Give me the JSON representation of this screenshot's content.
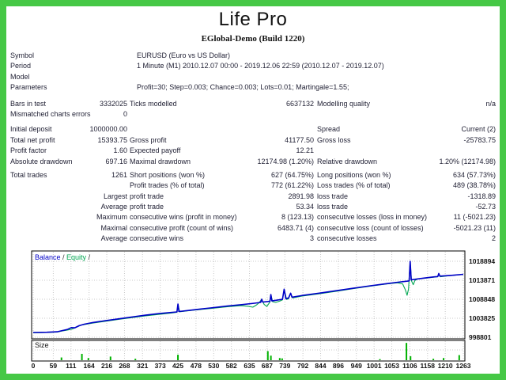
{
  "title": "Life Pro",
  "subtitle": "EGlobal-Demo (Build 1220)",
  "colors": {
    "frame": "#46c846",
    "balance": "#0000c8",
    "equity": "#00a651",
    "size_bar": "#00b200",
    "grid": "#c9c9c9",
    "axis_text": "#111111",
    "box_border": "#000000",
    "legend_sep": "#333333"
  },
  "report_rows": [
    {
      "l1": "Symbol",
      "span": "EURUSD (Euro vs US Dollar)"
    },
    {
      "l1": "Period",
      "span": "1 Minute (M1) 2010.12.07 00:00 - 2019.12.06 22:59 (2010.12.07 - 2019.12.07)"
    },
    {
      "l1": "Model",
      "span": ""
    },
    {
      "l1": "Parameters",
      "span": "Profit=30; Step=0.003; Chance=0.003; Lots=0.01; Martingale=1.55;"
    },
    {
      "gap": 7,
      "l1": "Bars in test",
      "v1": "3332025",
      "l2": "Ticks modelled",
      "v2": "6637132",
      "l3": "Modelling quality",
      "v3": "n/a"
    },
    {
      "l1": "Mismatched charts errors",
      "v1": "0"
    },
    {
      "gap": 6,
      "l1": "Initial deposit",
      "v1": "1000000.00",
      "l3": "Spread",
      "v3": "Current (2)"
    },
    {
      "l1": "Total net profit",
      "v1": "15393.75",
      "l2": "Gross profit",
      "v2": "41177.50",
      "l3": "Gross loss",
      "v3": "-25783.75"
    },
    {
      "l1": "Profit factor",
      "v1": "1.60",
      "l2": "Expected payoff",
      "v2": "12.21"
    },
    {
      "l1": "Absolute drawdown",
      "v1": "697.16",
      "l2": "Maximal drawdown",
      "v2": "12174.98 (1.20%)",
      "l3": "Relative drawdown",
      "v3": "1.20% (12174.98)"
    },
    {
      "gap": 4,
      "l1": "Total trades",
      "v1": "1261",
      "l2": "Short positions (won %)",
      "v2": "627 (64.75%)",
      "l3": "Long positions (won %)",
      "v3": "634 (57.73%)"
    },
    {
      "l2": "Profit trades (% of total)",
      "v2": "772 (61.22%)",
      "l3": "Loss trades (% of total)",
      "v3": "489 (38.78%)"
    },
    {
      "v1": "Largest",
      "l2": "profit trade",
      "v2": "2891.98",
      "l3": "loss trade",
      "v3": "-1318.89"
    },
    {
      "v1": "Average",
      "l2": "profit trade",
      "v2": "53.34",
      "l3": "loss trade",
      "v3": "-52.73"
    },
    {
      "v1": "Maximum",
      "l2": "consecutive wins (profit in money)",
      "v2": "8 (123.13)",
      "l3": "consecutive losses (loss in money)",
      "v3": "11 (-5021.23)"
    },
    {
      "v1": "Maximal",
      "l2": "consecutive profit (count of wins)",
      "v2": "6483.71 (4)",
      "l3": "consecutive loss (count of losses)",
      "v3": "-5021.23 (11)"
    },
    {
      "v1": "Average",
      "l2": "consecutive wins",
      "v2": "3",
      "l3": "consecutive losses",
      "v3": "2"
    }
  ],
  "chart_data": {
    "type": "line",
    "title": "",
    "legend": [
      "Balance",
      "Equity"
    ],
    "legend_position": "top-left",
    "grid": true,
    "xlim": [
      0,
      1263
    ],
    "ylim": [
      998300,
      1021600
    ],
    "x_ticks": [
      0,
      59,
      111,
      164,
      216,
      268,
      321,
      373,
      425,
      478,
      530,
      582,
      635,
      687,
      739,
      792,
      844,
      896,
      949,
      1001,
      1053,
      1106,
      1158,
      1210,
      1263
    ],
    "y_ticks": [
      998801,
      1003825,
      1008848,
      1013871,
      1018894
    ],
    "series": [
      {
        "name": "Balance",
        "points": [
          [
            0,
            1000050
          ],
          [
            40,
            1000130
          ],
          [
            70,
            1000250
          ],
          [
            85,
            1000550
          ],
          [
            100,
            1000850
          ],
          [
            112,
            1001350
          ],
          [
            122,
            1001300
          ],
          [
            135,
            1001850
          ],
          [
            150,
            1002250
          ],
          [
            175,
            1002700
          ],
          [
            210,
            1003150
          ],
          [
            250,
            1003650
          ],
          [
            290,
            1004150
          ],
          [
            330,
            1004650
          ],
          [
            370,
            1005050
          ],
          [
            405,
            1005350
          ],
          [
            422,
            1005500
          ],
          [
            425,
            1007600
          ],
          [
            428,
            1005600
          ],
          [
            470,
            1006050
          ],
          [
            520,
            1006550
          ],
          [
            570,
            1007050
          ],
          [
            615,
            1007450
          ],
          [
            650,
            1007800
          ],
          [
            668,
            1008000
          ],
          [
            671,
            1008850
          ],
          [
            674,
            1008100
          ],
          [
            688,
            1008250
          ],
          [
            695,
            1008300
          ],
          [
            698,
            1010100
          ],
          [
            701,
            1008400
          ],
          [
            715,
            1008600
          ],
          [
            732,
            1008850
          ],
          [
            737,
            1011500
          ],
          [
            742,
            1009000
          ],
          [
            750,
            1009200
          ],
          [
            756,
            1010450
          ],
          [
            760,
            1009400
          ],
          [
            790,
            1009850
          ],
          [
            840,
            1010450
          ],
          [
            890,
            1011100
          ],
          [
            940,
            1011750
          ],
          [
            990,
            1012400
          ],
          [
            1040,
            1013000
          ],
          [
            1080,
            1013450
          ],
          [
            1100,
            1013650
          ],
          [
            1104,
            1013700
          ],
          [
            1107,
            1018900
          ],
          [
            1110,
            1014000
          ],
          [
            1140,
            1014350
          ],
          [
            1175,
            1014750
          ],
          [
            1188,
            1014850
          ],
          [
            1191,
            1015650
          ],
          [
            1194,
            1014950
          ],
          [
            1225,
            1015150
          ],
          [
            1263,
            1015450
          ]
        ]
      },
      {
        "name": "Equity",
        "points": [
          [
            0,
            1000000
          ],
          [
            40,
            1000080
          ],
          [
            70,
            1000180
          ],
          [
            85,
            1000450
          ],
          [
            100,
            1000700
          ],
          [
            112,
            1000900
          ],
          [
            118,
            1001100
          ],
          [
            128,
            1001500
          ],
          [
            140,
            1002000
          ],
          [
            175,
            1002550
          ],
          [
            210,
            1003000
          ],
          [
            250,
            1003500
          ],
          [
            290,
            1004000
          ],
          [
            330,
            1004450
          ],
          [
            370,
            1004850
          ],
          [
            405,
            1005200
          ],
          [
            422,
            1005400
          ],
          [
            425,
            1007550
          ],
          [
            430,
            1005550
          ],
          [
            470,
            1005950
          ],
          [
            520,
            1006400
          ],
          [
            570,
            1006850
          ],
          [
            610,
            1007150
          ],
          [
            630,
            1007000
          ],
          [
            645,
            1006750
          ],
          [
            655,
            1007300
          ],
          [
            662,
            1007800
          ],
          [
            671,
            1008800
          ],
          [
            678,
            1007500
          ],
          [
            686,
            1006950
          ],
          [
            695,
            1008100
          ],
          [
            698,
            1010050
          ],
          [
            703,
            1008200
          ],
          [
            712,
            1008000
          ],
          [
            725,
            1008400
          ],
          [
            732,
            1008700
          ],
          [
            737,
            1011450
          ],
          [
            744,
            1008800
          ],
          [
            750,
            1009000
          ],
          [
            756,
            1010400
          ],
          [
            762,
            1009200
          ],
          [
            790,
            1009700
          ],
          [
            840,
            1010300
          ],
          [
            890,
            1010950
          ],
          [
            940,
            1011650
          ],
          [
            990,
            1012300
          ],
          [
            1040,
            1012900
          ],
          [
            1070,
            1013200
          ],
          [
            1085,
            1012900
          ],
          [
            1093,
            1011300
          ],
          [
            1098,
            1009900
          ],
          [
            1102,
            1011500
          ],
          [
            1107,
            1018800
          ],
          [
            1111,
            1013700
          ],
          [
            1116,
            1012700
          ],
          [
            1121,
            1013800
          ],
          [
            1128,
            1014200
          ],
          [
            1160,
            1014500
          ],
          [
            1188,
            1014800
          ],
          [
            1191,
            1015600
          ],
          [
            1196,
            1014800
          ],
          [
            1225,
            1015100
          ],
          [
            1263,
            1015400
          ]
        ]
      }
    ],
    "size_panel": {
      "label": "Size",
      "bars": [
        [
          83,
          0.15
        ],
        [
          143,
          0.35
        ],
        [
          162,
          0.12
        ],
        [
          227,
          0.2
        ],
        [
          300,
          0.08
        ],
        [
          425,
          0.3
        ],
        [
          689,
          0.5
        ],
        [
          698,
          0.25
        ],
        [
          724,
          0.12
        ],
        [
          731,
          0.1
        ],
        [
          1018,
          0.06
        ],
        [
          1096,
          0.95
        ],
        [
          1108,
          0.22
        ],
        [
          1175,
          0.08
        ],
        [
          1205,
          0.12
        ],
        [
          1251,
          0.28
        ]
      ]
    }
  }
}
